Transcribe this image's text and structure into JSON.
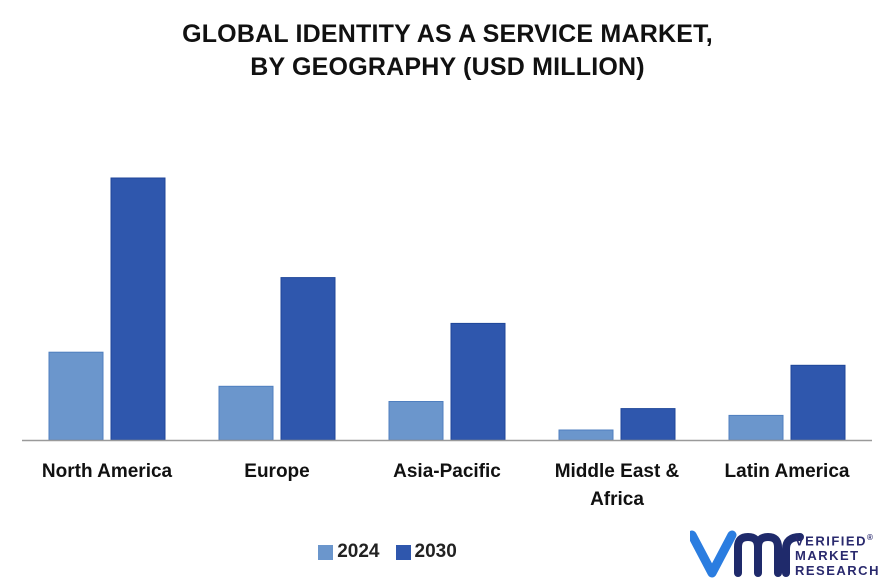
{
  "chart_data": {
    "type": "bar",
    "title_lines": [
      "GLOBAL IDENTITY AS A SERVICE MARKET,",
      "BY GEOGRAPHY (USD MILLION)"
    ],
    "categories": [
      "North America",
      "Europe",
      "Asia-Pacific",
      "Middle East & Africa",
      "Latin America"
    ],
    "series": [
      {
        "name": "2024",
        "color": "#6b96cc",
        "values": [
          33.5,
          20.5,
          14.7,
          3.8,
          9.4
        ]
      },
      {
        "name": "2030",
        "color": "#2f57ad",
        "values": [
          100,
          62,
          44.5,
          12,
          28.5
        ]
      }
    ],
    "ylim": [
      0,
      100
    ],
    "grid": false,
    "legend_position": "bottom"
  },
  "logo": {
    "mark_letters": "VMR",
    "lines": [
      "VERIFIED",
      "MARKET",
      "RESEARCH"
    ],
    "registered": "®",
    "colors": {
      "v": "#2b7de0",
      "mr": "#1f2a6b"
    }
  }
}
